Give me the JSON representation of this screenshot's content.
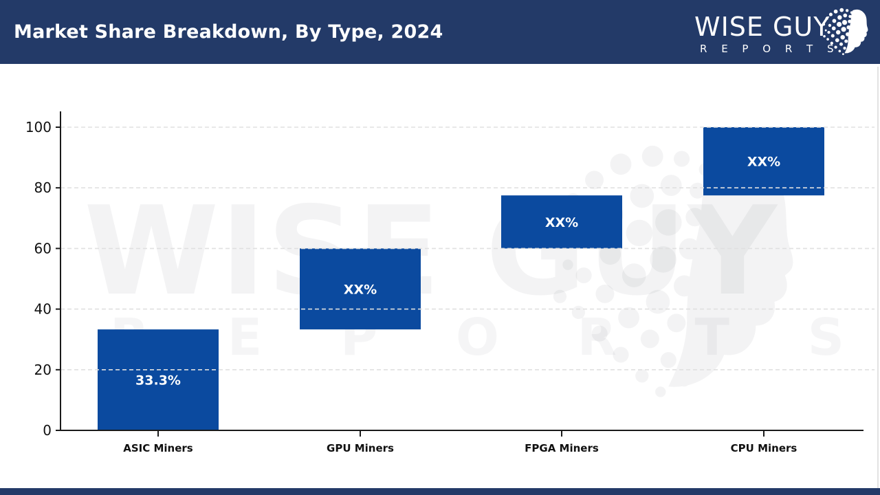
{
  "header": {
    "title": "Market Share Breakdown, By Type, 2024",
    "logo": {
      "line1": "WISE GUY",
      "line2": "R E P O R T S"
    }
  },
  "watermark": {
    "line1": "WISE GUY",
    "line2": "R E P O R T S"
  },
  "colors": {
    "header_bg": "#233a68",
    "footer_bg": "#233a68",
    "bar": "#0b4a9f",
    "grid": "#e0e0e0",
    "axis": "#1a1a1a",
    "tick_label": "#111111",
    "bar_label": "#ffffff",
    "right_border": "#e2e2e2"
  },
  "chart_data": {
    "type": "bar",
    "subtype": "waterfall",
    "title": "Market Share Breakdown, By Type, 2024",
    "categories": [
      "ASIC Miners",
      "GPU Miners",
      "FPGA Miners",
      "CPU Miners"
    ],
    "segments": [
      {
        "category": "ASIC Miners",
        "start": 0,
        "end": 33.3,
        "label": "33.3%"
      },
      {
        "category": "GPU Miners",
        "start": 33.3,
        "end": 60,
        "label": "XX%"
      },
      {
        "category": "FPGA Miners",
        "start": 60,
        "end": 77.5,
        "label": "XX%"
      },
      {
        "category": "CPU Miners",
        "start": 77.5,
        "end": 100,
        "label": "XX%"
      }
    ],
    "xlabel": "",
    "ylabel": "",
    "ylim": [
      0,
      105
    ],
    "yticks": [
      0,
      20,
      40,
      60,
      80,
      100
    ],
    "grid": "horizontal-dashed",
    "legend": "none"
  }
}
